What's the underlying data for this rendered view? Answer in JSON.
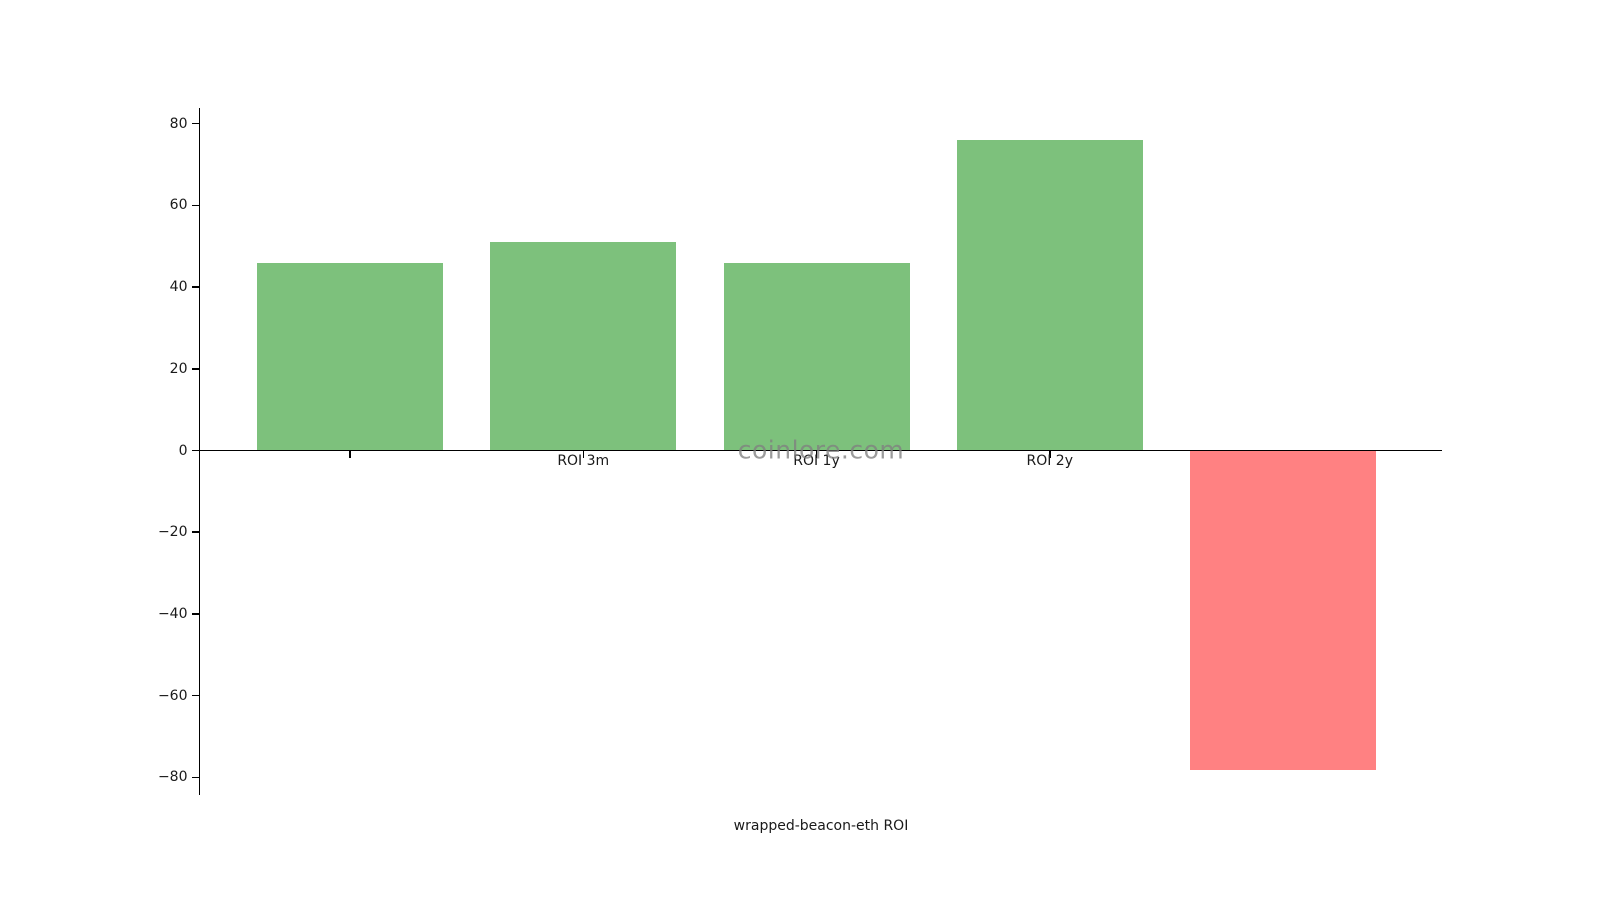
{
  "chart_data": {
    "type": "bar",
    "categories": [
      "",
      "ROI 3m",
      "ROI 1y",
      "ROI 2y",
      ""
    ],
    "values": [
      46,
      51,
      46,
      76,
      -78
    ],
    "bar_colors": [
      "#7dc17c",
      "#7dc17c",
      "#7dc17c",
      "#7dc17c",
      "#ff8182"
    ],
    "title": "",
    "xlabel": "wrapped-beacon-eth ROI",
    "ylabel": "",
    "ylim": [
      -84,
      84
    ],
    "yticks": [
      {
        "value": 80,
        "label": "80"
      },
      {
        "value": 60,
        "label": "60"
      },
      {
        "value": 40,
        "label": "40"
      },
      {
        "value": 20,
        "label": "20"
      },
      {
        "value": 0,
        "label": "0"
      },
      {
        "value": -20,
        "label": "−20"
      },
      {
        "value": -40,
        "label": "−40"
      },
      {
        "value": -60,
        "label": "−60"
      },
      {
        "value": -80,
        "label": "−80"
      }
    ],
    "grid": false,
    "legend": false,
    "positive_color": "#7dc17c",
    "negative_color": "#ff8182",
    "axis_color": "#000000"
  },
  "watermark": {
    "text": "coinlore.com",
    "color": "#828282"
  }
}
